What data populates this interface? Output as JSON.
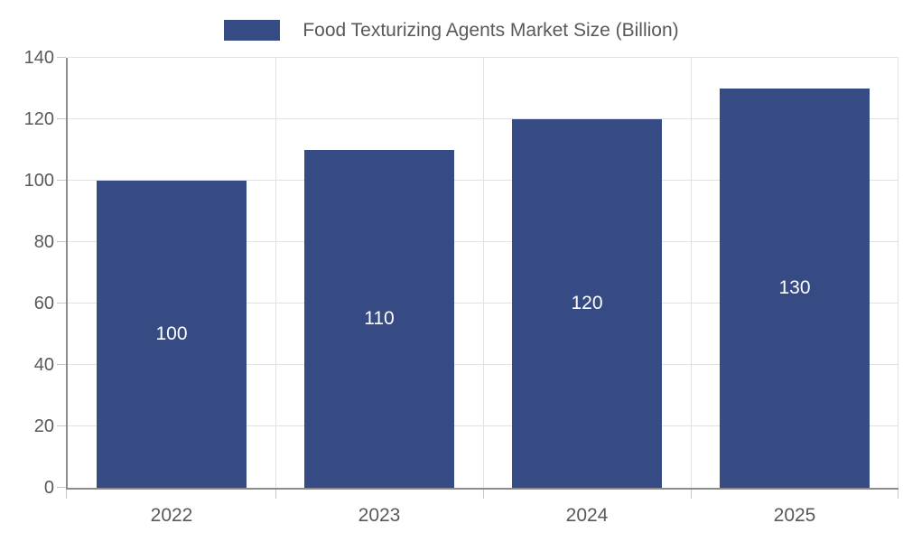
{
  "chart_data": {
    "type": "bar",
    "title": "Food Texturizing Agents Market Size (Billion)",
    "categories": [
      "2022",
      "2023",
      "2024",
      "2025"
    ],
    "values": [
      100,
      110,
      120,
      130
    ],
    "bar_labels": [
      "100",
      "110",
      "120",
      "130"
    ],
    "xlabel": "",
    "ylabel": "",
    "ylim": [
      0,
      140
    ],
    "yticks": [
      0,
      20,
      40,
      60,
      80,
      100,
      120,
      140
    ],
    "grid": true,
    "legend_position": "top-center",
    "colors": {
      "bar": "#364a84",
      "bar_label": "#ffffff",
      "axis_text": "#595959",
      "grid": "#e2e2e2",
      "axis_line": "#8c8c8c",
      "tick": "#c6c6c6",
      "background": "#ffffff"
    }
  }
}
